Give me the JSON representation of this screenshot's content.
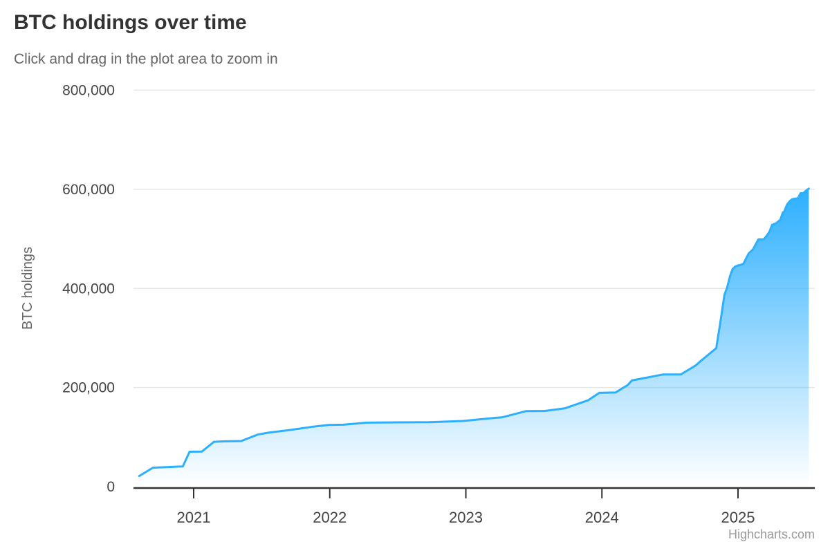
{
  "header": {
    "title": "BTC holdings over time",
    "subtitle": "Click and drag in the plot area to zoom in"
  },
  "credits": {
    "label": "Highcharts.com"
  },
  "colors": {
    "line": "#2caffe",
    "fill_top": "#2caffe",
    "axis": "#333333",
    "grid": "#e6e6e6",
    "title": "#333333",
    "subtitle": "#666666",
    "tick_label": "#444444",
    "axis_title": "#666666",
    "credits": "#999999"
  },
  "chart_data": {
    "type": "area",
    "title": "BTC holdings over time",
    "subtitle": "Click and drag in the plot area to zoom in",
    "xlabel": "",
    "ylabel": "BTC holdings",
    "legend": "none",
    "grid": "horizontal-only",
    "xlim": [
      2020.56,
      2025.56
    ],
    "ylim": [
      0,
      800000
    ],
    "x_tick_values": [
      2021,
      2022,
      2023,
      2024,
      2025
    ],
    "x_tick_labels": [
      "2021",
      "2022",
      "2023",
      "2024",
      "2025"
    ],
    "y_tick_values": [
      0,
      200000,
      400000,
      600000,
      800000
    ],
    "y_tick_labels": [
      "0",
      "200,000",
      "400,000",
      "600,000",
      "800,000"
    ],
    "series": [
      {
        "name": "BTC holdings",
        "points": [
          [
            2020.6,
            21454
          ],
          [
            2020.7,
            38250
          ],
          [
            2020.92,
            40824
          ],
          [
            2020.97,
            70470
          ],
          [
            2021.06,
            70784
          ],
          [
            2021.15,
            90531
          ],
          [
            2021.22,
            91326
          ],
          [
            2021.35,
            92079
          ],
          [
            2021.47,
            105085
          ],
          [
            2021.55,
            108992
          ],
          [
            2021.7,
            114042
          ],
          [
            2021.88,
            121044
          ],
          [
            2021.99,
            124391
          ],
          [
            2022.1,
            125051
          ],
          [
            2022.27,
            129218
          ],
          [
            2022.5,
            129699
          ],
          [
            2022.73,
            130000
          ],
          [
            2022.98,
            132500
          ],
          [
            2023.22,
            138955
          ],
          [
            2023.27,
            140000
          ],
          [
            2023.44,
            152333
          ],
          [
            2023.58,
            152800
          ],
          [
            2023.73,
            158245
          ],
          [
            2023.9,
            174530
          ],
          [
            2023.98,
            189150
          ],
          [
            2024.1,
            190000
          ],
          [
            2024.19,
            205000
          ],
          [
            2024.22,
            214246
          ],
          [
            2024.45,
            226331
          ],
          [
            2024.58,
            226500
          ],
          [
            2024.69,
            244800
          ],
          [
            2024.72,
            252220
          ],
          [
            2024.84,
            279420
          ],
          [
            2024.87,
            331200
          ],
          [
            2024.9,
            386700
          ],
          [
            2024.92,
            402100
          ],
          [
            2024.94,
            423650
          ],
          [
            2024.96,
            439000
          ],
          [
            2024.98,
            444262
          ],
          [
            2025.0,
            446400
          ],
          [
            2025.02,
            447470
          ],
          [
            2025.04,
            450000
          ],
          [
            2025.06,
            461000
          ],
          [
            2025.08,
            471107
          ],
          [
            2025.11,
            478740
          ],
          [
            2025.15,
            499096
          ],
          [
            2025.19,
            499226
          ],
          [
            2025.21,
            506137
          ],
          [
            2025.23,
            514000
          ],
          [
            2025.25,
            528185
          ],
          [
            2025.28,
            531644
          ],
          [
            2025.31,
            538200
          ],
          [
            2025.33,
            553555
          ],
          [
            2025.34,
            555450
          ],
          [
            2025.36,
            568840
          ],
          [
            2025.38,
            576230
          ],
          [
            2025.4,
            580250
          ],
          [
            2025.44,
            582000
          ],
          [
            2025.46,
            592100
          ],
          [
            2025.48,
            592345
          ],
          [
            2025.5,
            597325
          ],
          [
            2025.52,
            601550
          ]
        ]
      }
    ]
  }
}
